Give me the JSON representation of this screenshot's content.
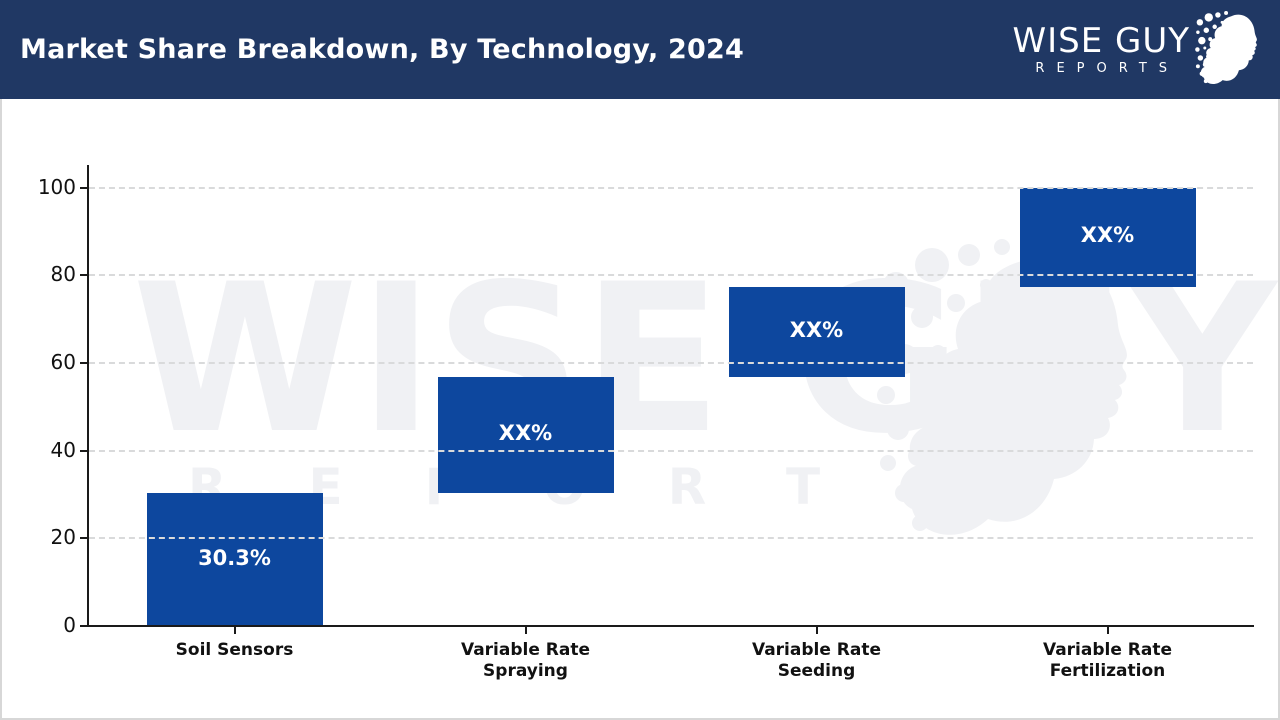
{
  "header": {
    "title": "Market Share Breakdown, By Technology, 2024",
    "logo": {
      "line1": "WISE GUY",
      "line2": "REPORTS"
    }
  },
  "watermark": {
    "line1": "WISE GUY",
    "line2": "REPORTS"
  },
  "colors": {
    "header_bg": "#203864",
    "bar": "#0d479e",
    "grid": "#d9dadb",
    "axis": "#1a1a1a",
    "watermark": "#f0f1f4",
    "text": "#111111",
    "value_label": "#ffffff"
  },
  "chart_data": {
    "type": "bar",
    "subtype": "waterfall",
    "title": "Market Share Breakdown, By Technology, 2024",
    "categories": [
      [
        "Soil Sensors"
      ],
      [
        "Variable Rate",
        "Spraying"
      ],
      [
        "Variable Rate",
        "Seeding"
      ],
      [
        "Variable Rate",
        "Fertilization"
      ]
    ],
    "segments": [
      {
        "category": "Soil Sensors",
        "start": 0,
        "end": 30.3,
        "label": "30.3%"
      },
      {
        "category": "Variable Rate Spraying",
        "start": 30.3,
        "end": 56.8,
        "label": "XX%"
      },
      {
        "category": "Variable Rate Seeding",
        "start": 56.8,
        "end": 77.3,
        "label": "XX%"
      },
      {
        "category": "Variable Rate Fertilization",
        "start": 77.3,
        "end": 100,
        "label": "XX%"
      }
    ],
    "y_ticks": [
      0,
      20,
      40,
      60,
      80,
      100
    ],
    "ylim": [
      0,
      105
    ],
    "xlabel": "",
    "ylabel": "",
    "grid": "horizontal-dashed",
    "legend": "none"
  }
}
